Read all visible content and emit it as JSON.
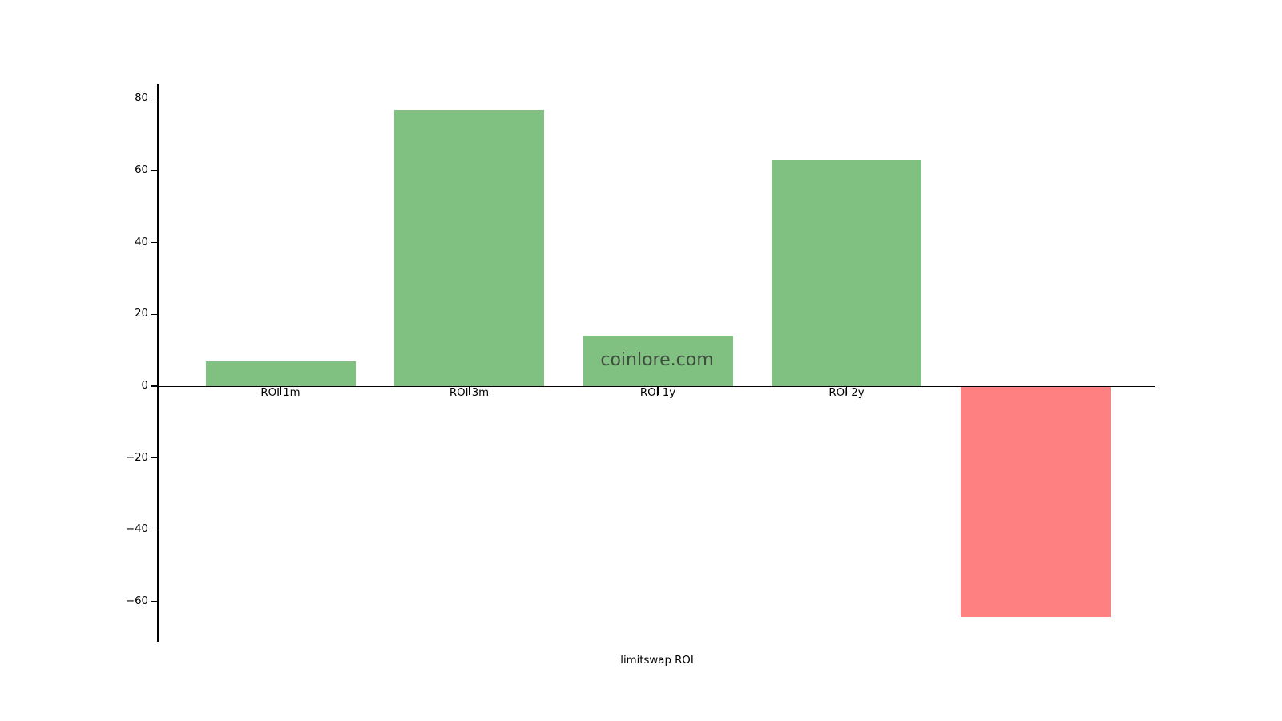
{
  "chart_data": {
    "type": "bar",
    "title": "",
    "xlabel": "limitswap ROI",
    "ylabel": "",
    "categories": [
      "ROI 1m",
      "ROI 3m",
      "ROI 1y",
      "ROI 2y",
      ""
    ],
    "values": [
      7,
      77,
      14,
      63,
      -64
    ],
    "positive_color": "#80c080",
    "negative_color": "#ff8080",
    "axis_color": "#000000",
    "ylim": [
      -71,
      84
    ],
    "yticks": [
      {
        "value": 80,
        "label": "80"
      },
      {
        "value": 60,
        "label": "60"
      },
      {
        "value": 40,
        "label": "40"
      },
      {
        "value": 20,
        "label": "20"
      },
      {
        "value": 0,
        "label": "0"
      },
      {
        "value": -20,
        "label": "−20"
      },
      {
        "value": -40,
        "label": "−40"
      },
      {
        "value": -60,
        "label": "−60"
      }
    ],
    "grid": false,
    "legend_position": "none",
    "watermark": "coinlore.com"
  }
}
